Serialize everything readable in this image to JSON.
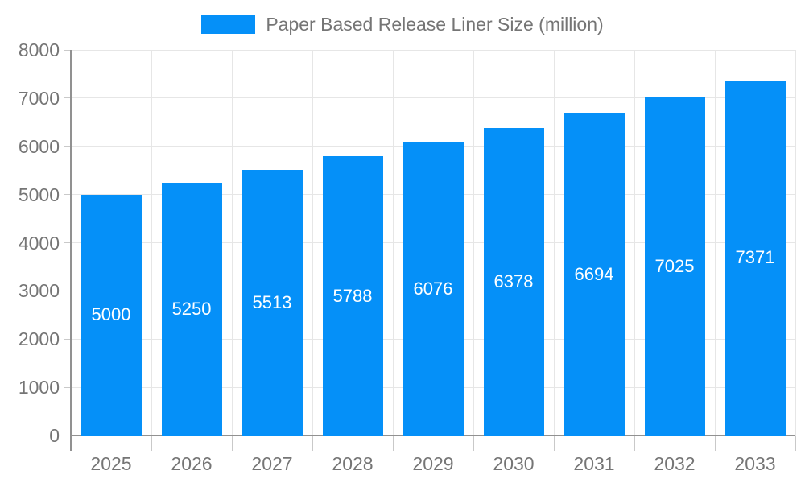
{
  "chart_data": {
    "type": "bar",
    "title": "Paper Based Release Liner Size (million)",
    "legend": {
      "position": "top",
      "label": "Paper Based Release Liner Size (million)"
    },
    "categories": [
      "2025",
      "2026",
      "2027",
      "2028",
      "2029",
      "2030",
      "2031",
      "2032",
      "2033"
    ],
    "series": [
      {
        "name": "Paper Based Release Liner Size (million)",
        "values": [
          5000,
          5250,
          5513,
          5788,
          6076,
          6378,
          6694,
          7025,
          7371
        ]
      }
    ],
    "xlabel": "",
    "ylabel": "",
    "ylim": [
      0,
      8000
    ],
    "yticks": [
      0,
      1000,
      2000,
      3000,
      4000,
      5000,
      6000,
      7000,
      8000
    ],
    "grid": true,
    "bar_value_labels_inside": true,
    "colors": {
      "bar": "#0590f8",
      "bar_label_text": "#ffffff",
      "axis_text": "#757575",
      "axis_line": "#919191",
      "gridline": "#e6e6e6",
      "tick": "#c9c9c9",
      "background": "#ffffff"
    }
  }
}
